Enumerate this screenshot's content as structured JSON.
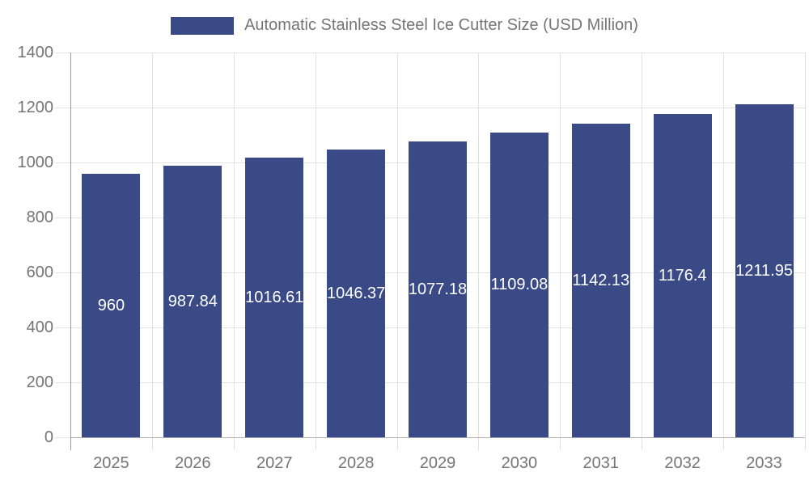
{
  "legend": {
    "label": "Automatic Stainless Steel Ice Cutter Size (USD Million)"
  },
  "chart_data": {
    "type": "bar",
    "title": "Automatic Stainless Steel Ice Cutter Size (USD Million)",
    "categories": [
      "2025",
      "2026",
      "2027",
      "2028",
      "2029",
      "2030",
      "2031",
      "2032",
      "2033"
    ],
    "values": [
      960,
      987.84,
      1016.61,
      1046.37,
      1077.18,
      1109.08,
      1142.13,
      1176.4,
      1211.95
    ],
    "bar_labels": [
      "960",
      "987.84",
      "1016.61",
      "1046.37",
      "1077.18",
      "1109.08",
      "1142.13",
      "1176.4",
      "1211.95"
    ],
    "xlabel": "",
    "ylabel": "",
    "ylim": [
      0,
      1400
    ],
    "ytick_step": 200,
    "ytick_labels": [
      "0",
      "200",
      "400",
      "600",
      "800",
      "1000",
      "1200",
      "1400"
    ],
    "grid": true,
    "legend_position": "top",
    "bar_label_position": "inside-middle",
    "colors": {
      "bar": "#3A4A87",
      "grid": "#E2E2E2",
      "axis": "#9B9B9B",
      "baseline": "#B0B0B0",
      "text": "#757575",
      "bar_label": "#FFFFFF",
      "background": "#FFFFFF"
    }
  }
}
